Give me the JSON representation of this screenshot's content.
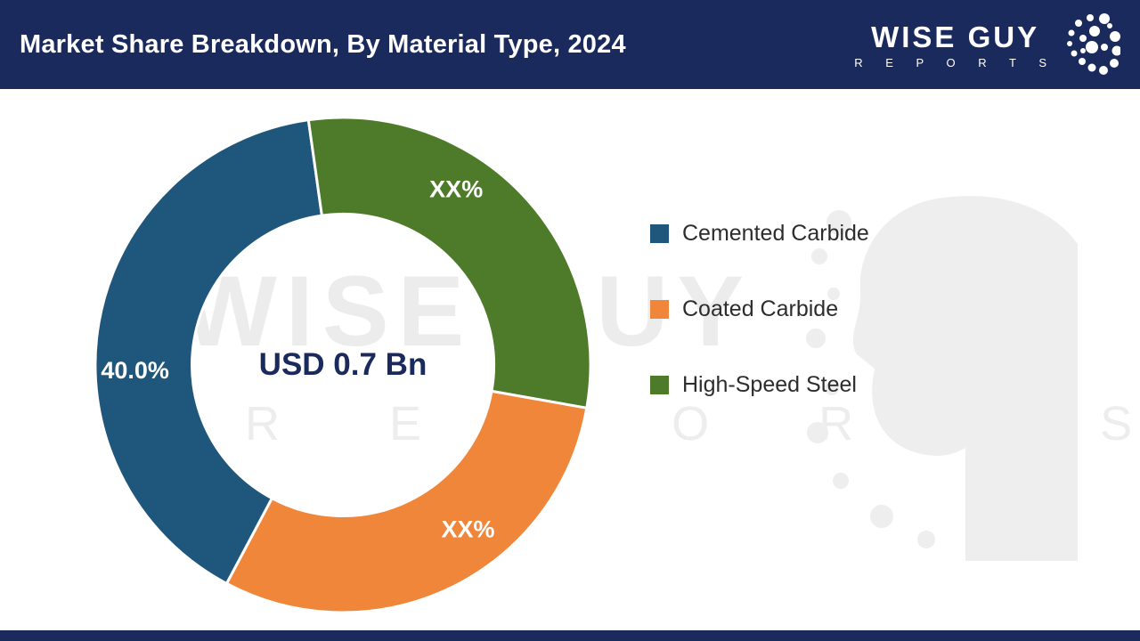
{
  "header": {
    "title": "Market Share Breakdown, By Material Type, 2024",
    "logo": {
      "line1": "WISE GUY",
      "line2": "R E P O R T S"
    }
  },
  "watermark": {
    "line1": "WISE GUY",
    "line2": "R E P O R T S"
  },
  "chart_data": {
    "type": "pie",
    "subtype": "donut",
    "title": "Market Share Breakdown, By Material Type, 2024",
    "center_label": "USD 0.7 Bn",
    "rotation_deg": 208,
    "inner_radius_ratio": 0.61,
    "segment_gap_stroke": "#ffffff",
    "segments": [
      {
        "name": "Cemented Carbide",
        "value": 40.0,
        "display_label": "40.0%",
        "color": "#1f567c",
        "label_angle": 268,
        "label_radius": 0.84
      },
      {
        "name": "High-Speed Steel",
        "value": 30.0,
        "display_label": "XX%",
        "color": "#4e7b2a",
        "label_angle": 33,
        "label_radius": 0.84
      },
      {
        "name": "Coated Carbide",
        "value": 30.0,
        "display_label": "XX%",
        "color": "#f0863a",
        "label_angle": 143,
        "label_radius": 0.84
      }
    ],
    "legend_position": "right",
    "legend": [
      {
        "label": "Cemented Carbide",
        "color": "#1f567c"
      },
      {
        "label": "Coated Carbide",
        "color": "#f0863a"
      },
      {
        "label": "High-Speed Steel",
        "color": "#4e7b2a"
      }
    ]
  },
  "colors": {
    "header_bg": "#1a2a5c",
    "center_text": "#1a2a5c",
    "percent_label_text": "#ffffff",
    "watermark": "#ececec"
  }
}
